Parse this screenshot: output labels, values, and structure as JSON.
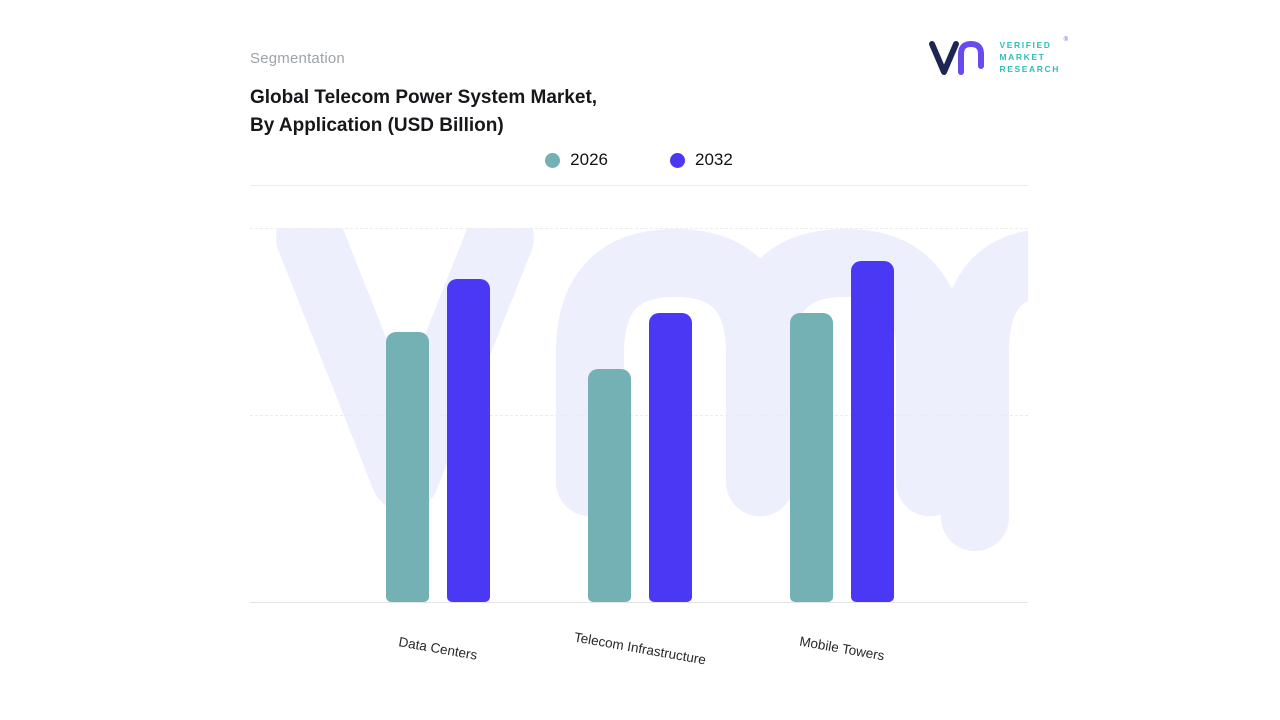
{
  "header": {
    "segmentation_label": "Segmentation",
    "title_line1": "Global Telecom Power System Market,",
    "title_line2": "By Application (USD Billion)"
  },
  "logo": {
    "line1": "VERIFIED",
    "line2": "MARKET",
    "line3": "RESEARCH",
    "registered_mark": "®"
  },
  "legend": [
    {
      "label": "2026",
      "color": "#74b1b4"
    },
    {
      "label": "2032",
      "color": "#4b38f4"
    }
  ],
  "chart_data": {
    "type": "bar",
    "title": "Global Telecom Power System Market, By Application (USD Billion)",
    "categories": [
      "Data Centers",
      "Telecom Infrastructure",
      "Mobile Towers"
    ],
    "series": [
      {
        "name": "2026",
        "color": "#74b1b4",
        "values": [
          72,
          62,
          77
        ]
      },
      {
        "name": "2032",
        "color": "#4b38f4",
        "values": [
          86,
          77,
          91
        ]
      }
    ],
    "xlabel": "",
    "ylabel": "",
    "ylim": [
      0,
      100
    ],
    "y_axis_labels_visible": false,
    "grid": "horizontal-dashed",
    "legend_position": "top",
    "watermark_color": "#edeffc"
  }
}
